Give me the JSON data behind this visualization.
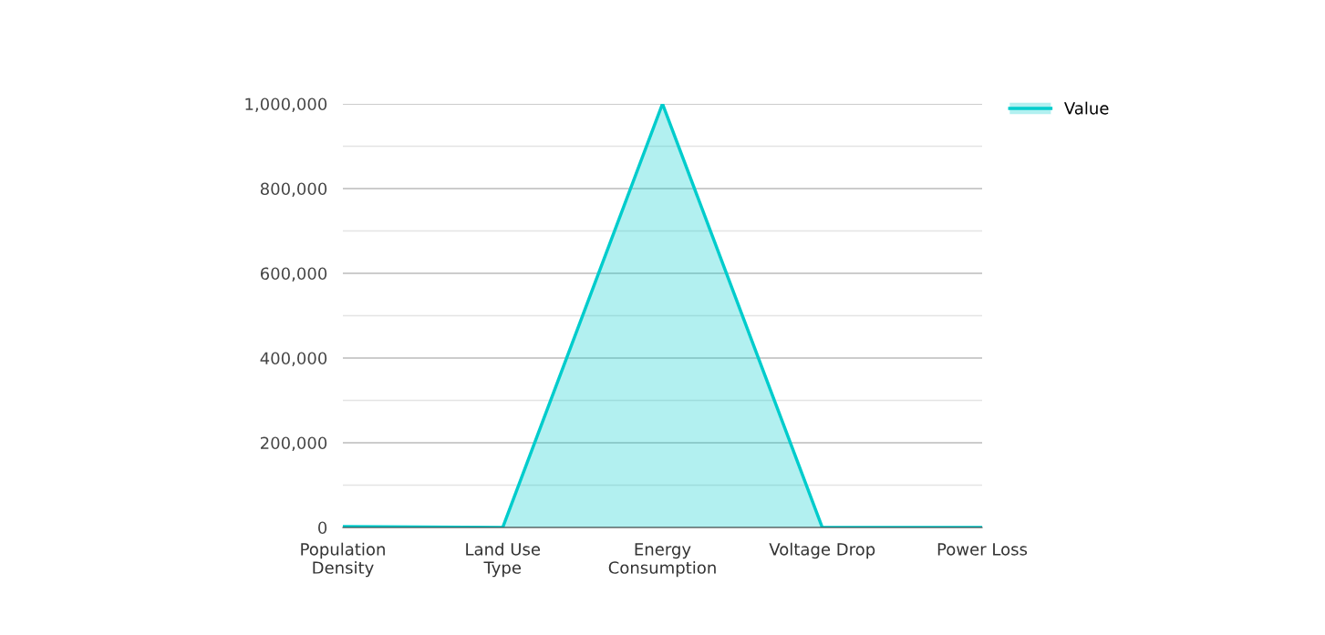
{
  "chart_data": {
    "type": "area",
    "categories": [
      "Population\nDensity",
      "Land Use\nType",
      "Energy\nConsumption",
      "Voltage Drop",
      "Power Loss"
    ],
    "series": [
      {
        "name": "Value",
        "color": "#00cccc",
        "values": [
          2000,
          0,
          1000000,
          0,
          0
        ]
      }
    ],
    "ylim": [
      0,
      1000000
    ],
    "yticks": [
      {
        "value": 0,
        "label": "0"
      },
      {
        "value": 100000,
        "label": null
      },
      {
        "value": 200000,
        "label": "200,000"
      },
      {
        "value": 300000,
        "label": null
      },
      {
        "value": 400000,
        "label": "400,000"
      },
      {
        "value": 500000,
        "label": null
      },
      {
        "value": 600000,
        "label": "600,000"
      },
      {
        "value": 700000,
        "label": null
      },
      {
        "value": 800000,
        "label": "800,000"
      },
      {
        "value": 900000,
        "label": null
      },
      {
        "value": 1000000,
        "label": "1,000,000"
      }
    ],
    "grid": "y",
    "legend": "top right"
  }
}
